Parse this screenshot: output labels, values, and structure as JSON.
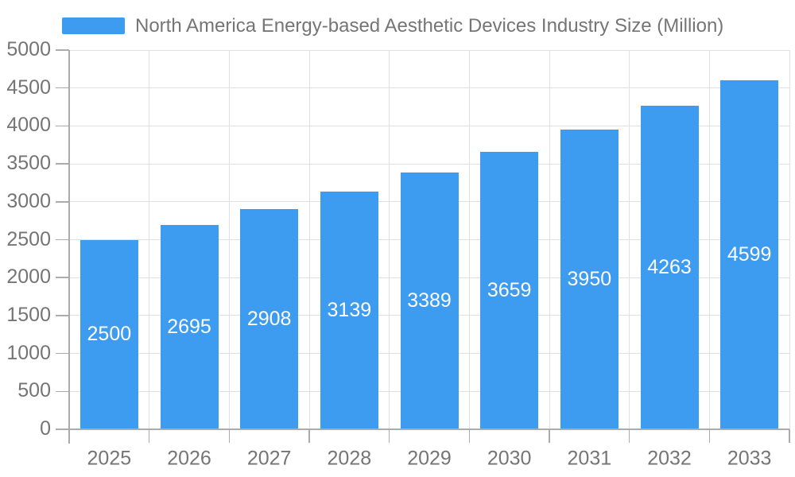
{
  "chart_data": {
    "type": "bar",
    "title": "North America Energy-based Aesthetic Devices Industry Size (Million)",
    "legend_position": "top",
    "legend_entries": [
      "North America Energy-based Aesthetic Devices Industry Size (Million)"
    ],
    "categories": [
      "2025",
      "2026",
      "2027",
      "2028",
      "2029",
      "2030",
      "2031",
      "2032",
      "2033"
    ],
    "values": [
      2500,
      2695,
      2908,
      3139,
      3389,
      3659,
      3950,
      4263,
      4599
    ],
    "xlabel": "",
    "ylabel": "",
    "ylim": [
      0,
      5000
    ],
    "ytick_step": 500,
    "yticks": [
      0,
      500,
      1000,
      1500,
      2000,
      2500,
      3000,
      3500,
      4000,
      4500,
      5000
    ],
    "grid": true,
    "colors": {
      "bar": "#3d9bf0",
      "bar_label": "#ffffff",
      "grid": "#e0e0e0",
      "axis": "#ababab",
      "text": "#757575",
      "background": "#ffffff"
    }
  }
}
